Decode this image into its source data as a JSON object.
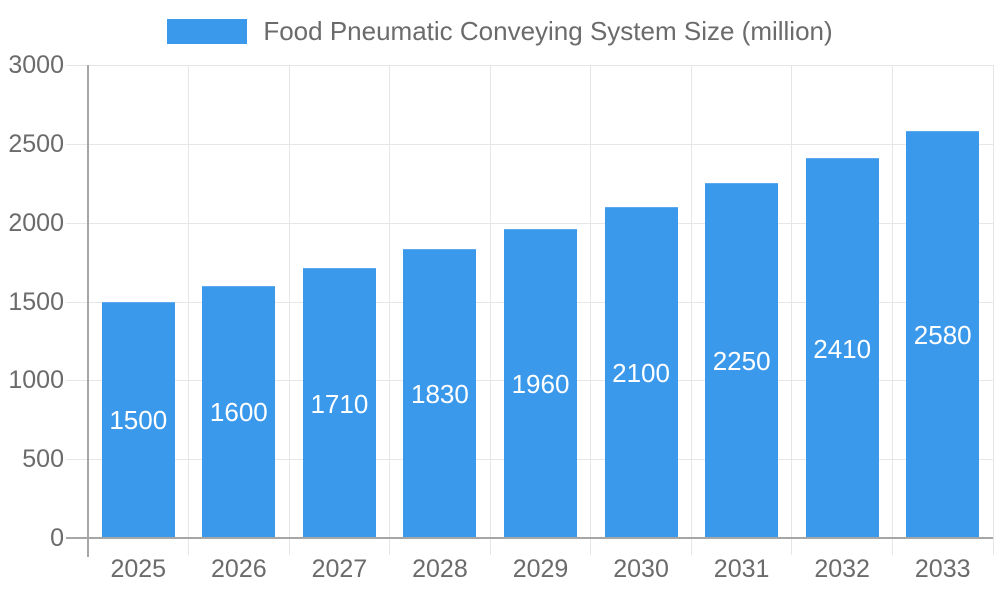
{
  "legend": {
    "label": "Food Pneumatic Conveying System Size (million)"
  },
  "chart_data": {
    "type": "bar",
    "title": "Food Pneumatic Conveying System Size (million)",
    "categories": [
      "2025",
      "2026",
      "2027",
      "2028",
      "2029",
      "2030",
      "2031",
      "2032",
      "2033"
    ],
    "values": [
      1500,
      1600,
      1710,
      1830,
      1960,
      2100,
      2250,
      2410,
      2580
    ],
    "series": [
      {
        "name": "Food Pneumatic Conveying System Size (million)",
        "values": [
          1500,
          1600,
          1710,
          1830,
          1960,
          2100,
          2250,
          2410,
          2580
        ]
      }
    ],
    "xlabel": "",
    "ylabel": "",
    "ylim": [
      0,
      3000
    ],
    "yticks": [
      0,
      500,
      1000,
      1500,
      2000,
      2500,
      3000
    ],
    "grid": true,
    "legend_position": "top",
    "value_labels": "inside-center",
    "bar_color": "#3b99ec",
    "value_label_color": "#ffffff",
    "text_color": "#6b6b6b",
    "grid_color": "#e6e6e6",
    "axis_color": "#a6a6a6"
  }
}
